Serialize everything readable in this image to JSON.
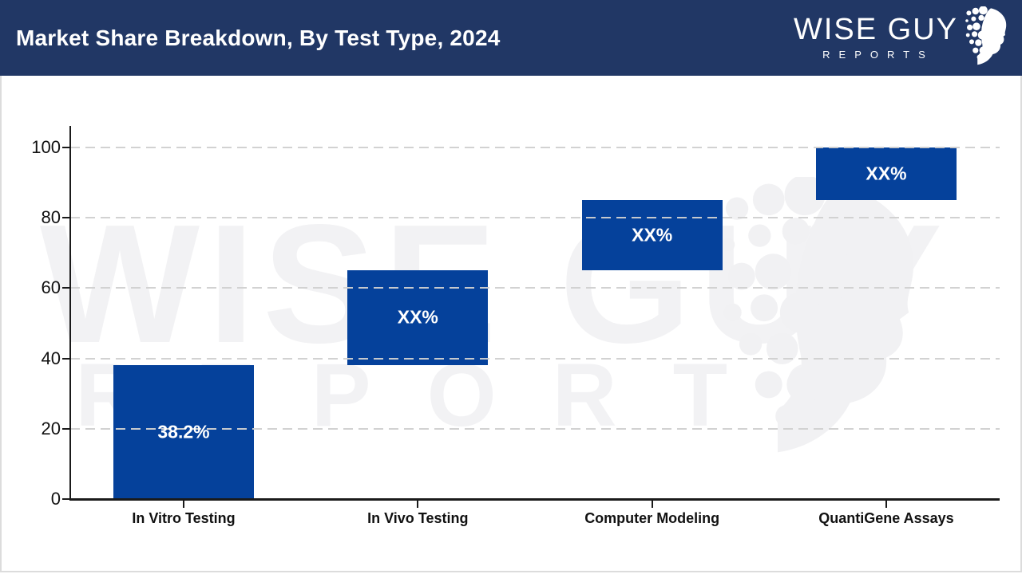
{
  "header": {
    "title": "Market Share Breakdown, By Test Type, 2024",
    "logo": {
      "line1": "WISE GUY",
      "line2": "REPORTS"
    }
  },
  "watermark": {
    "line1": "WISE GUY",
    "line2": "REPORTS"
  },
  "chart_data": {
    "type": "bar",
    "variant": "waterfall",
    "title": "Market Share Breakdown, By Test Type, 2024",
    "categories": [
      "In Vitro Testing",
      "In Vivo Testing",
      "Computer Modeling",
      "QuantiGene Assays"
    ],
    "segments": [
      {
        "category": "In Vitro Testing",
        "start": 0,
        "end": 38.2,
        "label": "38.2%"
      },
      {
        "category": "In Vivo Testing",
        "start": 38.2,
        "end": 65,
        "label": "XX%"
      },
      {
        "category": "Computer Modeling",
        "start": 65,
        "end": 85,
        "label": "XX%"
      },
      {
        "category": "QuantiGene Assays",
        "start": 85,
        "end": 100,
        "label": "XX%"
      }
    ],
    "yticks": [
      0,
      20,
      40,
      60,
      80,
      100
    ],
    "ylim": [
      0,
      107
    ],
    "xlabel": "",
    "ylabel": "",
    "grid": "horizontal-dashed",
    "legend": "none",
    "colors": {
      "bar": "#05419b",
      "bar_label": "#ffffff",
      "axis": "#1a1a1a",
      "grid": "#d0d0d0",
      "header_bg": "#213765",
      "watermark": "#f2f2f4"
    }
  }
}
